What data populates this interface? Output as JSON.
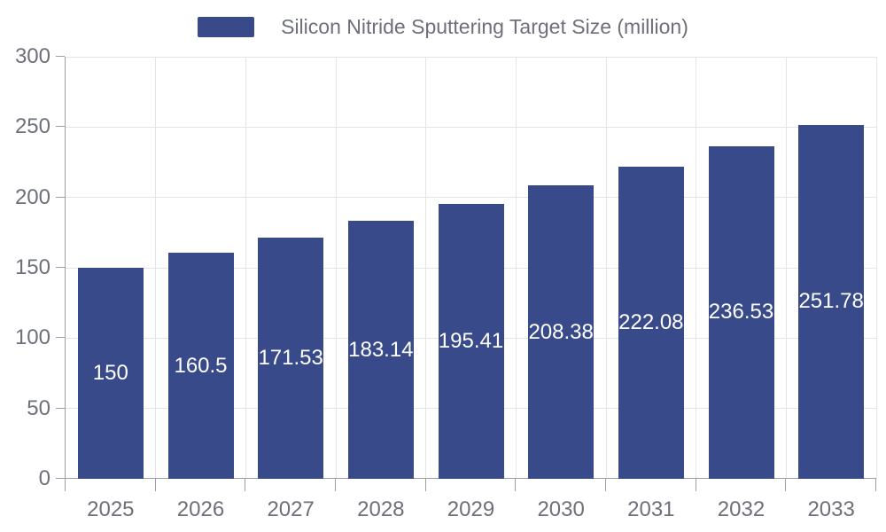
{
  "chart_data": {
    "type": "bar",
    "title": "Silicon Nitride Sputtering Target Size (million)",
    "legend": {
      "position": "top",
      "entries": [
        "Silicon Nitride Sputtering Target Size (million)"
      ]
    },
    "categories": [
      "2025",
      "2026",
      "2027",
      "2028",
      "2029",
      "2030",
      "2031",
      "2032",
      "2033"
    ],
    "values": [
      150,
      160.5,
      171.53,
      183.14,
      195.41,
      208.38,
      222.08,
      236.53,
      251.78
    ],
    "xlabel": "",
    "ylabel": "",
    "ylim": [
      0,
      300
    ],
    "yticks": [
      0,
      50,
      100,
      150,
      200,
      250,
      300
    ],
    "grid": true,
    "value_labels_inside_bars": true,
    "colors": {
      "bar": "#394A8B",
      "axis": "#9A9EA5",
      "gridline": "#E4E4E7",
      "label": "#6E7079",
      "value_label": "#FFFFFF",
      "background": "#FFFFFF"
    }
  }
}
